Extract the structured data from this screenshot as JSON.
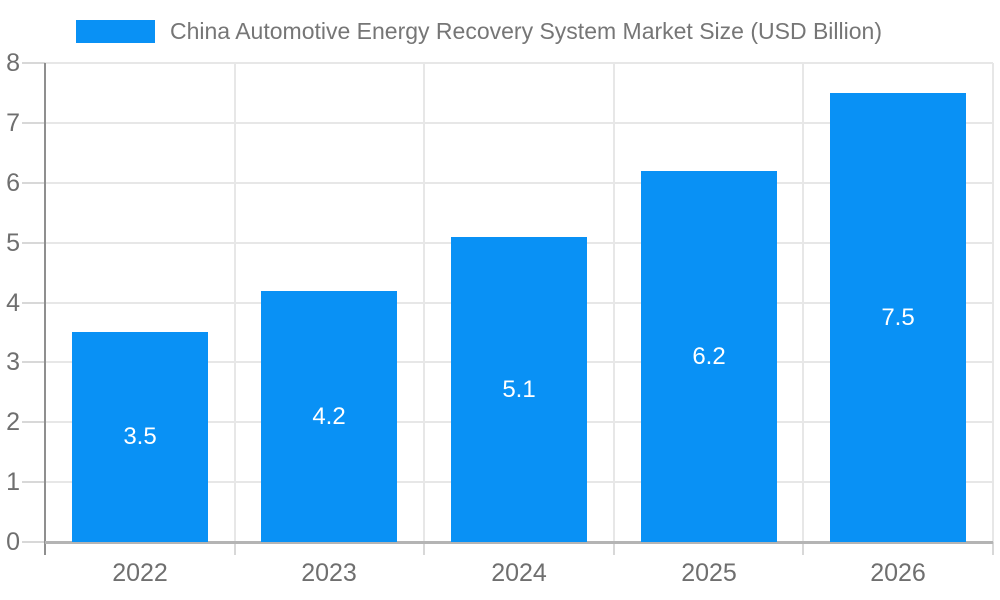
{
  "legend": {
    "label": "China Automotive Energy Recovery System Market Size (USD Billion)"
  },
  "chart_data": {
    "type": "bar",
    "title": "China Automotive Energy Recovery System Market Size (USD Billion)",
    "categories": [
      "2022",
      "2023",
      "2024",
      "2025",
      "2026"
    ],
    "values": [
      3.5,
      4.2,
      5.1,
      6.2,
      7.5
    ],
    "value_labels": [
      "3.5",
      "4.2",
      "5.1",
      "6.2",
      "7.5"
    ],
    "xlabel": "",
    "ylabel": "",
    "ylim": [
      0,
      8
    ],
    "y_ticks": [
      0,
      1,
      2,
      3,
      4,
      5,
      6,
      7,
      8
    ],
    "grid": true,
    "legend_position": "top-left",
    "colors": {
      "bar": "#0991F5",
      "bar_value_text": "#FFFFFF",
      "axis_text": "#6F6F6F",
      "legend_text": "#767676",
      "grid_line": "#E7E7E7",
      "tick_line": "#D8D8D8",
      "y_axis_line": "#8F8F8F",
      "x_axis_line": "#B4B4B4",
      "background": "#FFFFFF"
    }
  }
}
